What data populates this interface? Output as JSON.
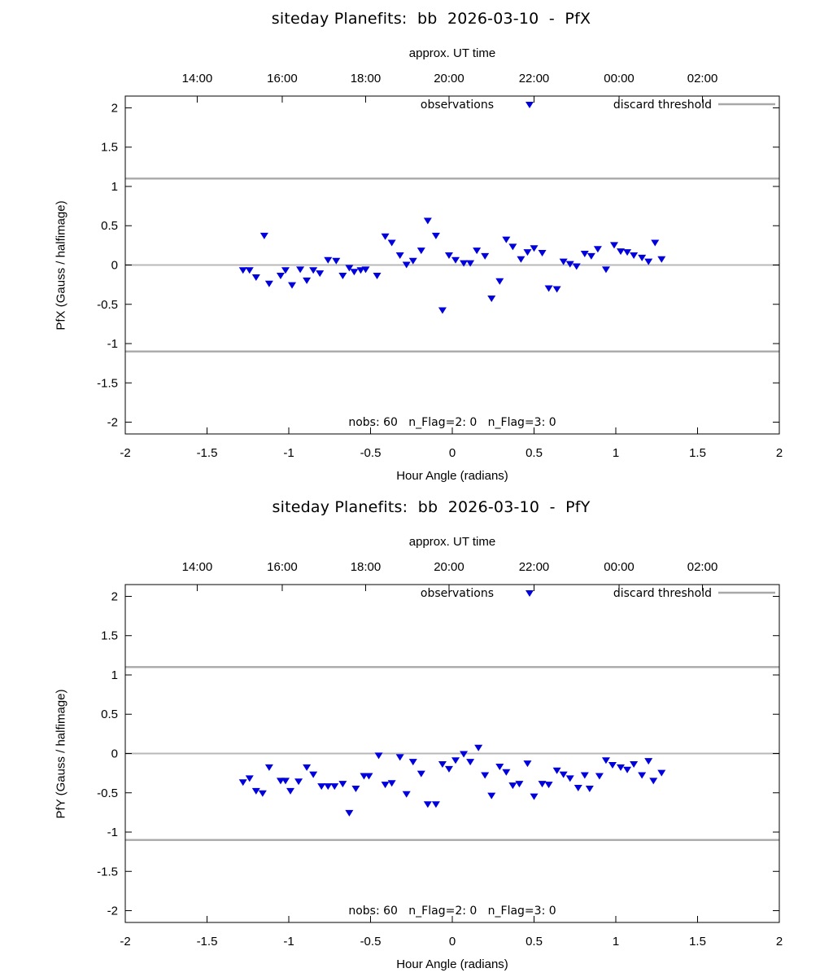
{
  "chart_data": [
    {
      "type": "scatter",
      "title": "siteday Planefits:  bb  2026-03-10  -  PfX",
      "x2label": "approx. UT time",
      "xlabel": "Hour Angle (radians)",
      "ylabel": "PfX (Gauss / halfimage)",
      "stats_text": "nobs: 60   n_Flag=2: 0   n_Flag=3: 0",
      "stats": {
        "nobs": 60,
        "n_flag_2": 0,
        "n_flag_3": 0
      },
      "xlim": [
        -2,
        2
      ],
      "ylim": [
        -2.15,
        2.15
      ],
      "x_ticks": [
        -2,
        -1.5,
        -1,
        -0.5,
        0,
        0.5,
        1,
        1.5,
        2
      ],
      "y_ticks": [
        2,
        1.5,
        1,
        0.5,
        0,
        -0.5,
        -1,
        -1.5,
        -2
      ],
      "x2_ticks": [
        {
          "label": "14:00",
          "x": -1.56
        },
        {
          "label": "16:00",
          "x": -1.04
        },
        {
          "label": "18:00",
          "x": -0.53
        },
        {
          "label": "20:00",
          "x": -0.02
        },
        {
          "label": "22:00",
          "x": 0.5
        },
        {
          "label": "00:00",
          "x": 1.02
        },
        {
          "label": "02:00",
          "x": 1.53
        }
      ],
      "grid": false,
      "legend_position": "top-right-inside",
      "legend": [
        {
          "label": "observations",
          "sample": "triangle-down-marker"
        },
        {
          "label": "discard threshold",
          "sample": "line"
        }
      ],
      "threshold_lines": [
        1.1,
        -1.1
      ],
      "zero_line": 0,
      "colors": {
        "marker": "#0000dd",
        "threshold": "#a8a8a8",
        "zero_line": "#b8b8b8",
        "border": "#000000"
      },
      "series": [
        {
          "name": "observations",
          "marker": "triangle-down",
          "points": [
            [
              -1.28,
              -0.06
            ],
            [
              -1.24,
              -0.06
            ],
            [
              -1.2,
              -0.15
            ],
            [
              -1.15,
              0.38
            ],
            [
              -1.12,
              -0.23
            ],
            [
              -1.05,
              -0.13
            ],
            [
              -1.02,
              -0.06
            ],
            [
              -0.98,
              -0.25
            ],
            [
              -0.93,
              -0.05
            ],
            [
              -0.89,
              -0.19
            ],
            [
              -0.85,
              -0.06
            ],
            [
              -0.81,
              -0.1
            ],
            [
              -0.76,
              0.07
            ],
            [
              -0.71,
              0.06
            ],
            [
              -0.67,
              -0.13
            ],
            [
              -0.63,
              -0.03
            ],
            [
              -0.6,
              -0.08
            ],
            [
              -0.56,
              -0.06
            ],
            [
              -0.53,
              -0.05
            ],
            [
              -0.46,
              -0.13
            ],
            [
              -0.41,
              0.37
            ],
            [
              -0.37,
              0.29
            ],
            [
              -0.32,
              0.13
            ],
            [
              -0.28,
              0.01
            ],
            [
              -0.24,
              0.06
            ],
            [
              -0.19,
              0.19
            ],
            [
              -0.15,
              0.57
            ],
            [
              -0.1,
              0.38
            ],
            [
              -0.06,
              -0.57
            ],
            [
              -0.02,
              0.13
            ],
            [
              0.02,
              0.07
            ],
            [
              0.07,
              0.03
            ],
            [
              0.11,
              0.03
            ],
            [
              0.15,
              0.19
            ],
            [
              0.2,
              0.12
            ],
            [
              0.24,
              -0.42
            ],
            [
              0.29,
              -0.2
            ],
            [
              0.33,
              0.33
            ],
            [
              0.37,
              0.24
            ],
            [
              0.42,
              0.08
            ],
            [
              0.46,
              0.17
            ],
            [
              0.5,
              0.22
            ],
            [
              0.55,
              0.16
            ],
            [
              0.59,
              -0.29
            ],
            [
              0.64,
              -0.3
            ],
            [
              0.68,
              0.05
            ],
            [
              0.72,
              0.02
            ],
            [
              0.76,
              -0.01
            ],
            [
              0.81,
              0.15
            ],
            [
              0.85,
              0.12
            ],
            [
              0.89,
              0.21
            ],
            [
              0.94,
              -0.05
            ],
            [
              0.99,
              0.26
            ],
            [
              1.03,
              0.18
            ],
            [
              1.07,
              0.17
            ],
            [
              1.11,
              0.13
            ],
            [
              1.16,
              0.1
            ],
            [
              1.2,
              0.05
            ],
            [
              1.24,
              0.29
            ],
            [
              1.28,
              0.08
            ]
          ]
        }
      ]
    },
    {
      "type": "scatter",
      "title": "siteday Planefits:  bb  2026-03-10  -  PfY",
      "x2label": "approx. UT time",
      "xlabel": "Hour Angle (radians)",
      "ylabel": "PfY (Gauss / halfimage)",
      "stats_text": "nobs: 60   n_Flag=2: 0   n_Flag=3: 0",
      "stats": {
        "nobs": 60,
        "n_flag_2": 0,
        "n_flag_3": 0
      },
      "xlim": [
        -2,
        2
      ],
      "ylim": [
        -2.15,
        2.15
      ],
      "x_ticks": [
        -2,
        -1.5,
        -1,
        -0.5,
        0,
        0.5,
        1,
        1.5,
        2
      ],
      "y_ticks": [
        2,
        1.5,
        1,
        0.5,
        0,
        -0.5,
        -1,
        -1.5,
        -2
      ],
      "x2_ticks": [
        {
          "label": "14:00",
          "x": -1.56
        },
        {
          "label": "16:00",
          "x": -1.04
        },
        {
          "label": "18:00",
          "x": -0.53
        },
        {
          "label": "20:00",
          "x": -0.02
        },
        {
          "label": "22:00",
          "x": 0.5
        },
        {
          "label": "00:00",
          "x": 1.02
        },
        {
          "label": "02:00",
          "x": 1.53
        }
      ],
      "grid": false,
      "legend_position": "top-right-inside",
      "legend": [
        {
          "label": "observations",
          "sample": "triangle-down-marker"
        },
        {
          "label": "discard threshold",
          "sample": "line"
        }
      ],
      "threshold_lines": [
        1.1,
        -1.1
      ],
      "zero_line": 0,
      "colors": {
        "marker": "#0000dd",
        "threshold": "#a8a8a8",
        "zero_line": "#b8b8b8",
        "border": "#000000"
      },
      "series": [
        {
          "name": "observations",
          "marker": "triangle-down",
          "points": [
            [
              -1.28,
              -0.36
            ],
            [
              -1.24,
              -0.31
            ],
            [
              -1.2,
              -0.47
            ],
            [
              -1.16,
              -0.5
            ],
            [
              -1.12,
              -0.17
            ],
            [
              -1.05,
              -0.34
            ],
            [
              -1.02,
              -0.34
            ],
            [
              -0.99,
              -0.47
            ],
            [
              -0.94,
              -0.35
            ],
            [
              -0.89,
              -0.17
            ],
            [
              -0.85,
              -0.26
            ],
            [
              -0.8,
              -0.41
            ],
            [
              -0.76,
              -0.41
            ],
            [
              -0.72,
              -0.41
            ],
            [
              -0.67,
              -0.38
            ],
            [
              -0.63,
              -0.75
            ],
            [
              -0.59,
              -0.44
            ],
            [
              -0.54,
              -0.28
            ],
            [
              -0.51,
              -0.28
            ],
            [
              -0.45,
              -0.02
            ],
            [
              -0.41,
              -0.39
            ],
            [
              -0.37,
              -0.37
            ],
            [
              -0.32,
              -0.04
            ],
            [
              -0.28,
              -0.51
            ],
            [
              -0.24,
              -0.1
            ],
            [
              -0.19,
              -0.25
            ],
            [
              -0.15,
              -0.64
            ],
            [
              -0.1,
              -0.64
            ],
            [
              -0.06,
              -0.13
            ],
            [
              -0.02,
              -0.19
            ],
            [
              0.02,
              -0.08
            ],
            [
              0.07,
              0.0
            ],
            [
              0.11,
              -0.1
            ],
            [
              0.16,
              0.08
            ],
            [
              0.2,
              -0.27
            ],
            [
              0.24,
              -0.53
            ],
            [
              0.29,
              -0.16
            ],
            [
              0.33,
              -0.23
            ],
            [
              0.37,
              -0.4
            ],
            [
              0.41,
              -0.38
            ],
            [
              0.46,
              -0.12
            ],
            [
              0.5,
              -0.54
            ],
            [
              0.55,
              -0.38
            ],
            [
              0.59,
              -0.39
            ],
            [
              0.64,
              -0.21
            ],
            [
              0.68,
              -0.26
            ],
            [
              0.72,
              -0.31
            ],
            [
              0.77,
              -0.43
            ],
            [
              0.81,
              -0.27
            ],
            [
              0.84,
              -0.44
            ],
            [
              0.9,
              -0.28
            ],
            [
              0.94,
              -0.08
            ],
            [
              0.98,
              -0.14
            ],
            [
              1.03,
              -0.17
            ],
            [
              1.07,
              -0.2
            ],
            [
              1.11,
              -0.13
            ],
            [
              1.16,
              -0.27
            ],
            [
              1.2,
              -0.09
            ],
            [
              1.23,
              -0.34
            ],
            [
              1.28,
              -0.24
            ]
          ]
        }
      ]
    }
  ]
}
